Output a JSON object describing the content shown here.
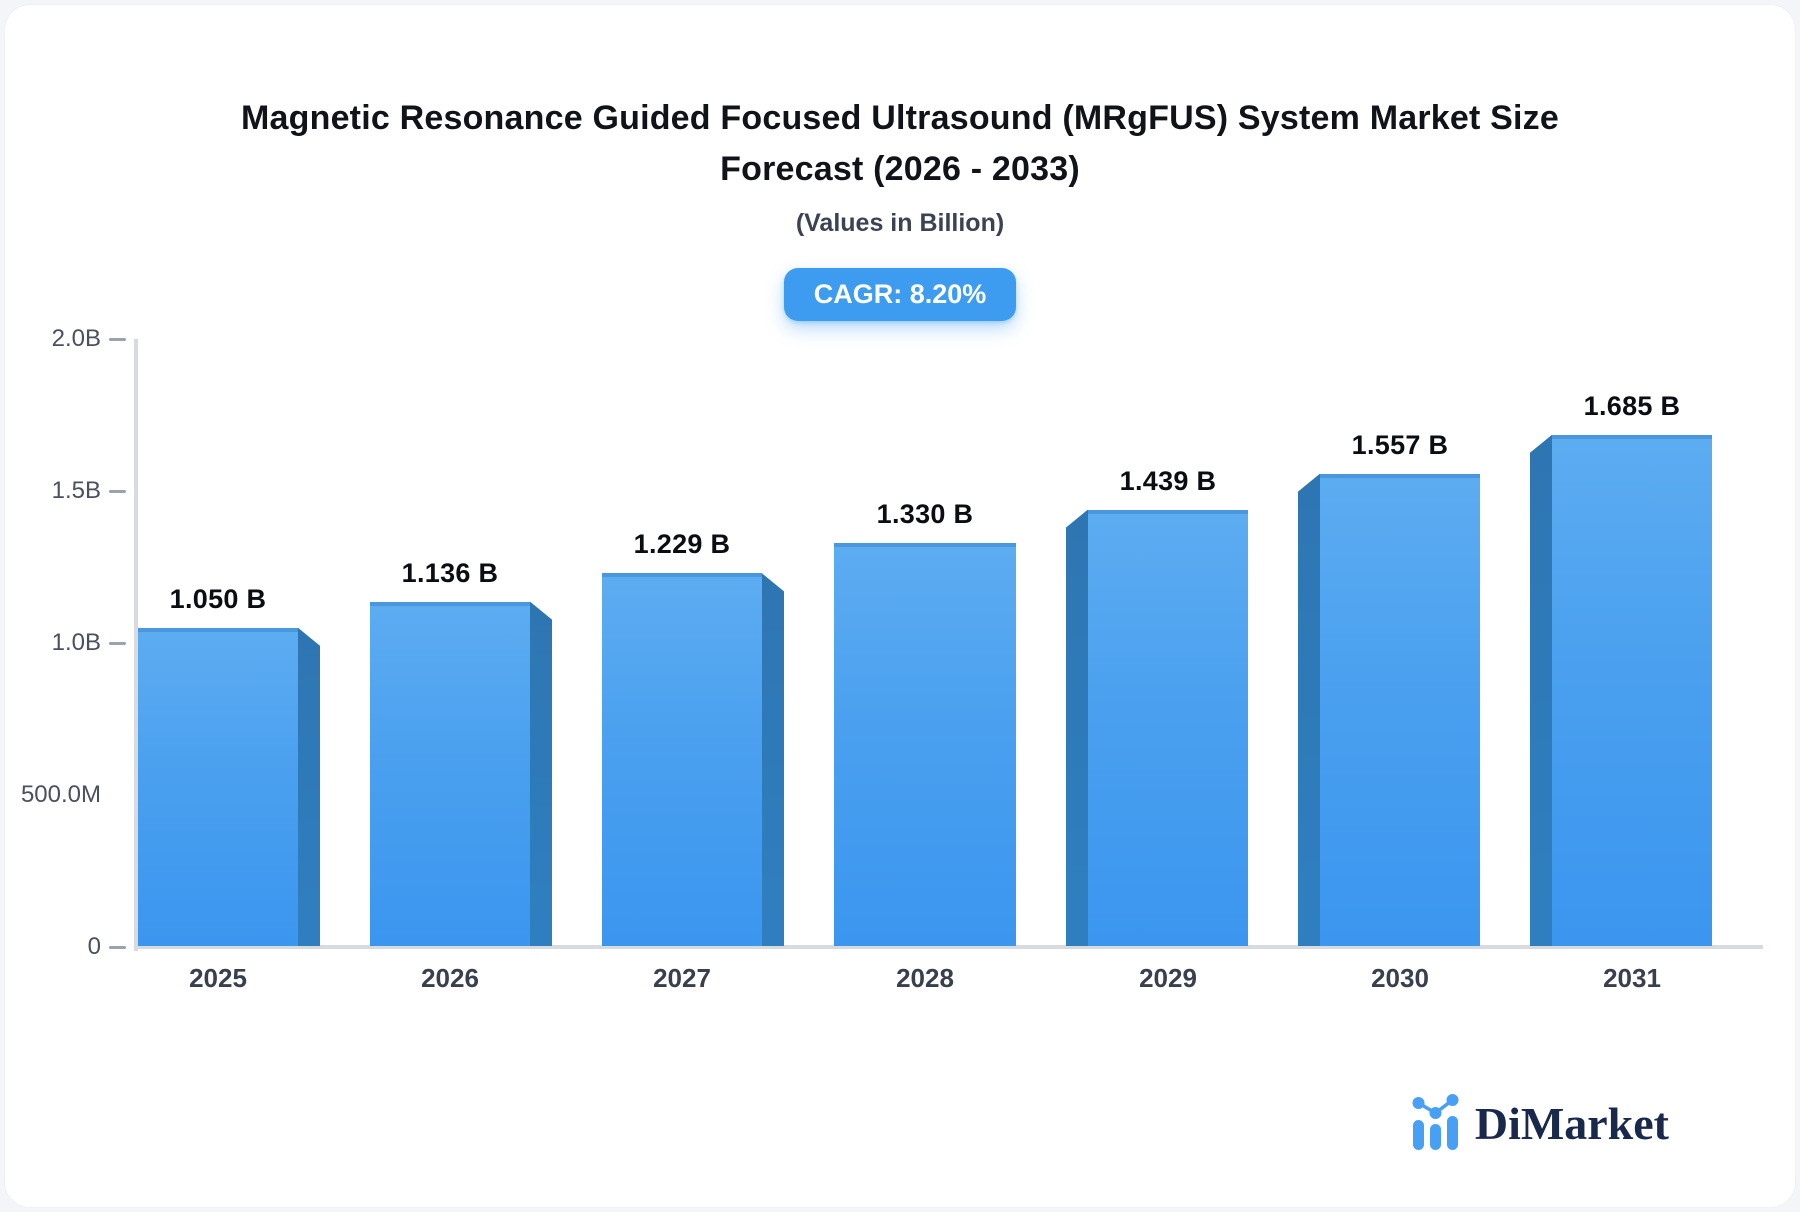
{
  "title": {
    "line1": "Magnetic Resonance Guided Focused Ultrasound (MRgFUS) System Market Size",
    "line2": "Forecast (2026 - 2033)"
  },
  "subtitle": "(Values in Billion)",
  "badge": {
    "label": "CAGR: 8.20%"
  },
  "chart_data": {
    "type": "bar",
    "categories": [
      "2025",
      "2026",
      "2027",
      "2028",
      "2029",
      "2030",
      "2031"
    ],
    "values": [
      1.05,
      1.136,
      1.229,
      1.33,
      1.439,
      1.557,
      1.685
    ],
    "value_labels": [
      "1.050 B",
      "1.136 B",
      "1.229 B",
      "1.330 B",
      "1.439 B",
      "1.557 B",
      "1.685 B"
    ],
    "y_ticks": [
      {
        "label": "2.0B",
        "value": 2.0,
        "dash": true
      },
      {
        "label": "1.5B",
        "value": 1.5,
        "dash": true
      },
      {
        "label": "1.0B",
        "value": 1.0,
        "dash": true
      },
      {
        "label": "500.0M",
        "value": 0.5,
        "dash": false
      },
      {
        "label": "0",
        "value": 0.0,
        "dash": true
      }
    ],
    "ylim": [
      0,
      2.0
    ],
    "xlabel": "",
    "ylabel": "",
    "grid": false,
    "legend": false,
    "title": "Magnetic Resonance Guided Focused Ultrasound (MRgFUS) System Market Size Forecast (2026 - 2033) (Values in Billion)"
  },
  "logo": {
    "text": "DiMarket",
    "icon": "bar-chart-sparkline-icon"
  },
  "colors": {
    "accent": "#3e9cf0",
    "bar_top": "#5cacf1",
    "bar_bottom": "#3b96ef",
    "bar_side": "#2e76b2",
    "axis": "#d7dbe0",
    "title_text": "#101318",
    "logo_text": "#18294b"
  }
}
